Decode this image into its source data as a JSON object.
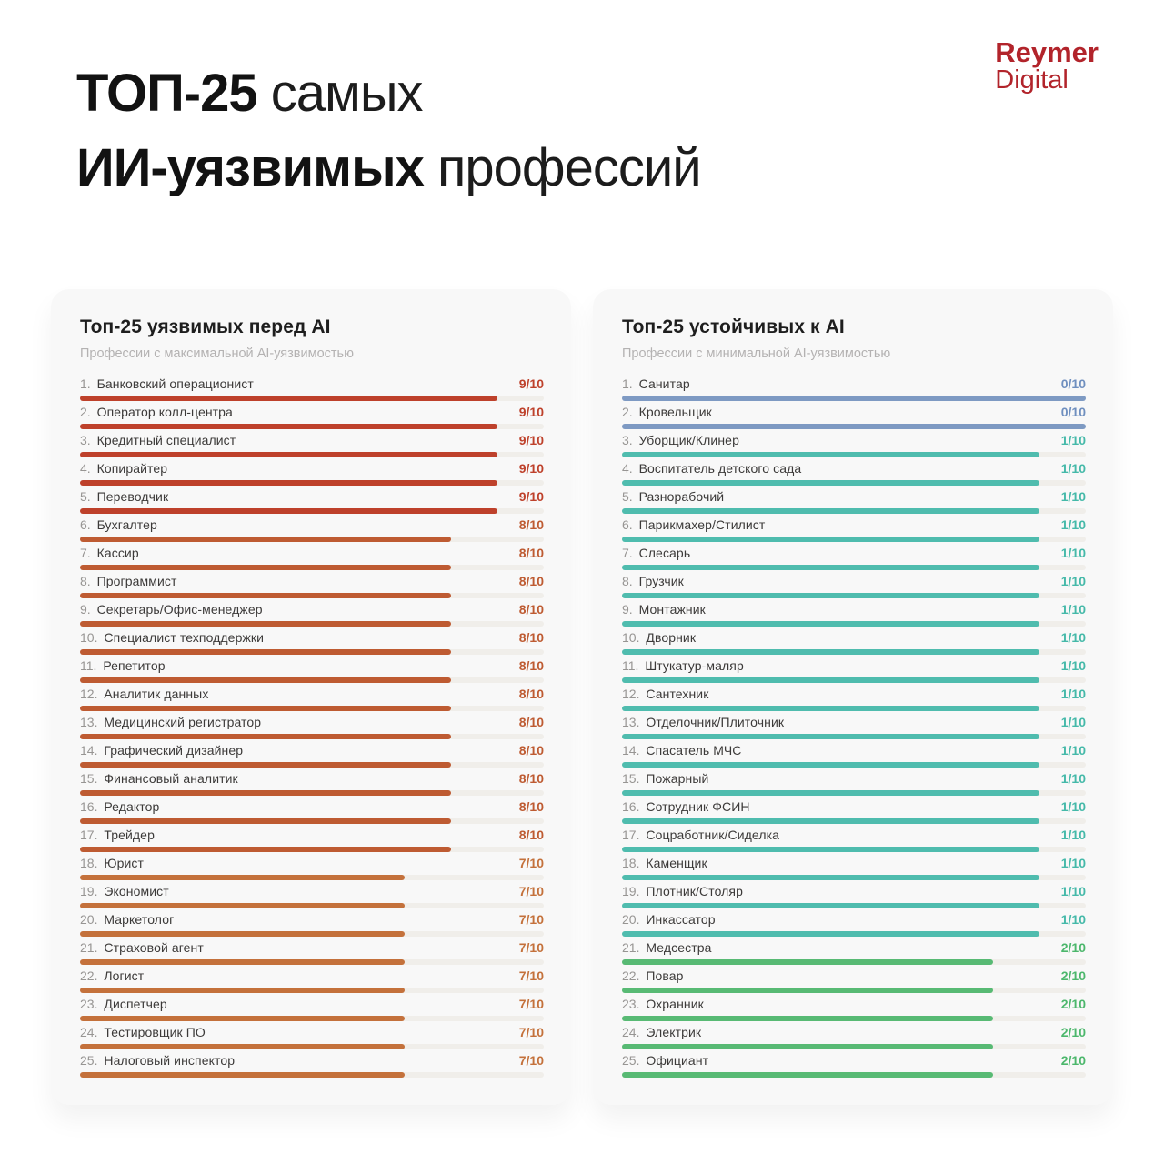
{
  "header": {
    "title": {
      "line1_bold": "ТОП-25",
      "line1_light": " самых",
      "line2_bold": "ИИ-уязвимых",
      "line2_light": " профессий"
    },
    "logo": {
      "line1": "Reymer",
      "line2": "Digital",
      "color": "#b2242b"
    }
  },
  "score_colors": {
    "9": {
      "bar": "#be412b",
      "text": "#be412b"
    },
    "8": {
      "bar": "#be5b32",
      "text": "#be5b32"
    },
    "7": {
      "bar": "#c4713b",
      "text": "#c4713b"
    },
    "0": {
      "bar": "#7e9ac3",
      "text": "#6f8fbf"
    },
    "1": {
      "bar": "#4fbcae",
      "text": "#45b9a9"
    },
    "2": {
      "bar": "#58ba74",
      "text": "#4cb76c"
    }
  },
  "chart_data": [
    {
      "type": "bar",
      "orientation": "horizontal",
      "title": "Топ-25 уязвимых перед AI",
      "subtitle": "Профессии с максимальной AI-уязвимостью",
      "value_suffix": "/10",
      "xlim": [
        0,
        10
      ],
      "bar_length_rule": "value/10",
      "inverted_bar": false,
      "categories": [
        "Банковский операционист",
        "Оператор колл-центра",
        "Кредитный специалист",
        "Копирайтер",
        "Переводчик",
        "Бухгалтер",
        "Кассир",
        "Программист",
        "Секретарь/Офис-менеджер",
        "Специалист техподдержки",
        "Репетитор",
        "Аналитик данных",
        "Медицинский регистратор",
        "Графический дизайнер",
        "Финансовый аналитик",
        "Редактор",
        "Трейдер",
        "Юрист",
        "Экономист",
        "Маркетолог",
        "Страховой агент",
        "Логист",
        "Диспетчер",
        "Тестировщик ПО",
        "Налоговый инспектор"
      ],
      "values": [
        9,
        9,
        9,
        9,
        9,
        8,
        8,
        8,
        8,
        8,
        8,
        8,
        8,
        8,
        8,
        8,
        8,
        7,
        7,
        7,
        7,
        7,
        7,
        7,
        7
      ]
    },
    {
      "type": "bar",
      "orientation": "horizontal",
      "title": "Топ-25 устойчивых к AI",
      "subtitle": "Профессии с минимальной AI-уязвимостью",
      "value_suffix": "/10",
      "xlim": [
        0,
        10
      ],
      "bar_length_rule": "(10-value)/10",
      "inverted_bar": true,
      "categories": [
        "Санитар",
        "Кровельщик",
        "Уборщик/Клинер",
        "Воспитатель детского сада",
        "Разнорабочий",
        "Парикмахер/Стилист",
        "Слесарь",
        "Грузчик",
        "Монтажник",
        "Дворник",
        "Штукатур-маляр",
        "Сантехник",
        "Отделочник/Плиточник",
        "Спасатель МЧС",
        "Пожарный",
        "Сотрудник ФСИН",
        "Соцработник/Сиделка",
        "Каменщик",
        "Плотник/Столяр",
        "Инкассатор",
        "Медсестра",
        "Повар",
        "Охранник",
        "Электрик",
        "Официант"
      ],
      "values": [
        0,
        0,
        1,
        1,
        1,
        1,
        1,
        1,
        1,
        1,
        1,
        1,
        1,
        1,
        1,
        1,
        1,
        1,
        1,
        1,
        2,
        2,
        2,
        2,
        2
      ]
    }
  ]
}
